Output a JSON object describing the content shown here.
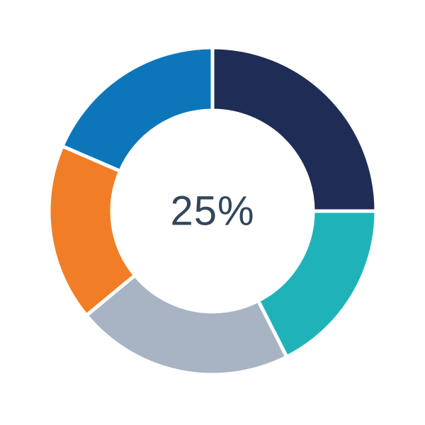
{
  "chart_data": {
    "type": "pie",
    "variant": "donut",
    "title": "",
    "center_label": "25%",
    "center_label_color": "#33475b",
    "background_color": "#ffffff",
    "gap_color": "#ffffff",
    "direction": "clockwise",
    "start_angle_deg": 0,
    "inner_radius_ratio": 0.615,
    "legend": "none",
    "segments": [
      {
        "name": "navy",
        "value": 25,
        "color": "#1f2c55"
      },
      {
        "name": "teal",
        "value": 17.5,
        "color": "#1fb3b9"
      },
      {
        "name": "gray",
        "value": 21.5,
        "color": "#a8b4c3"
      },
      {
        "name": "orange",
        "value": 17.5,
        "color": "#f17e26"
      },
      {
        "name": "light-blue",
        "value": 18.5,
        "color": "#0d76ba"
      }
    ]
  }
}
